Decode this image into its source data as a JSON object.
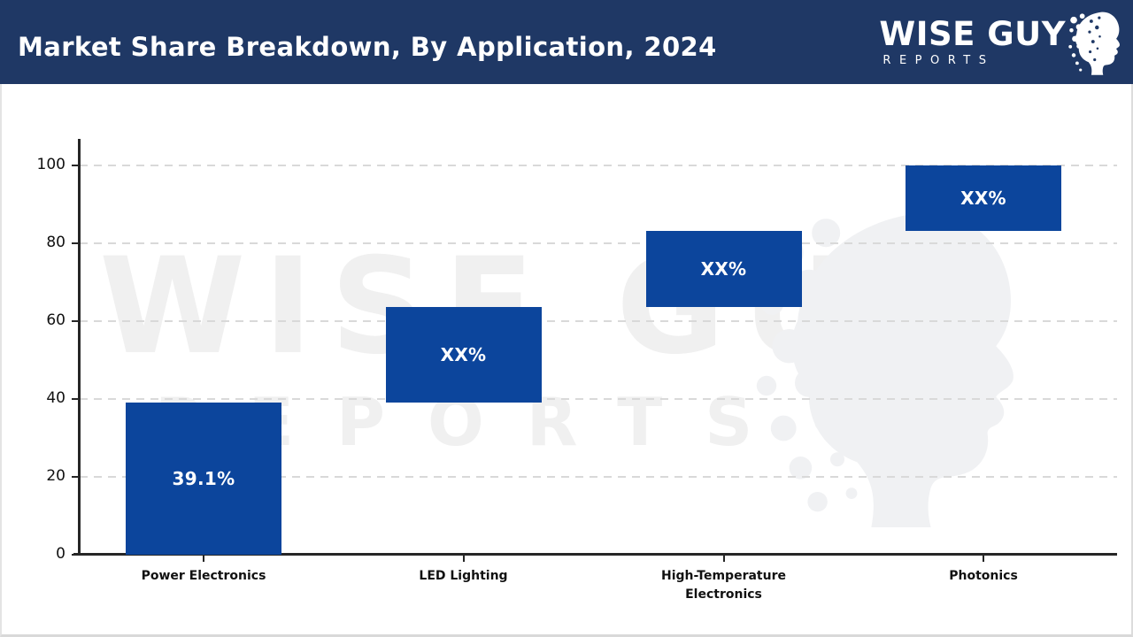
{
  "header": {
    "title": "Market Share Breakdown, By Application, 2024",
    "logo": {
      "brand_line1": "WISE GUY",
      "brand_line2": "REPORTS"
    }
  },
  "watermark": {
    "line1": "WISE GUY",
    "line2": "REPORTS"
  },
  "chart_data": {
    "type": "bar",
    "subtype": "waterfall",
    "title": "Market Share Breakdown, By Application, 2024",
    "categories": [
      "Power Electronics",
      "LED Lighting",
      "High-Temperature Electronics",
      "Photonics"
    ],
    "segments": [
      {
        "category": "Power Electronics",
        "start": 0,
        "end": 39.1,
        "label": "39.1%"
      },
      {
        "category": "LED Lighting",
        "start": 39.1,
        "end": 63.6,
        "label": "XX%"
      },
      {
        "category": "High-Temperature Electronics",
        "start": 63.6,
        "end": 83.2,
        "label": "XX%"
      },
      {
        "category": "Photonics",
        "start": 83.2,
        "end": 100,
        "label": "XX%"
      }
    ],
    "ylim": [
      0,
      100
    ],
    "yticks": [
      0,
      20,
      40,
      60,
      80,
      100
    ],
    "grid": "horizontal-dashed",
    "legend": "none",
    "bar_color": "#0C459C",
    "bar_label_color": "#ffffff"
  },
  "colors": {
    "header_bg": "#1F3865",
    "bar": "#0C459C",
    "grid": "#d9d9d9",
    "axis": "#262626",
    "watermark": "#f0f0f0"
  }
}
